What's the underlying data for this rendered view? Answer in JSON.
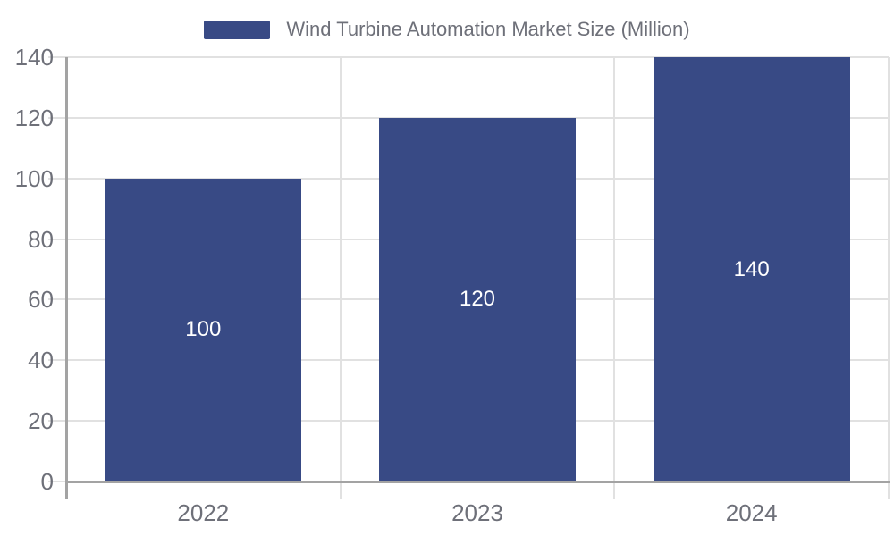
{
  "chart_data": {
    "type": "bar",
    "title": "Wind Turbine Automation Market Size (Million)",
    "categories": [
      "2022",
      "2023",
      "2024"
    ],
    "values": [
      100,
      120,
      140
    ],
    "series": [
      {
        "name": "Wind Turbine Automation Market Size (Million)",
        "values": [
          100,
          120,
          140
        ]
      }
    ],
    "xlabel": "",
    "ylabel": "",
    "ylim": [
      0,
      140
    ],
    "y_ticks": [
      0,
      20,
      40,
      60,
      80,
      100,
      120,
      140
    ],
    "grid": true,
    "legend_position": "top-center",
    "value_labels_position": "inside-center",
    "colors": {
      "bar": "#384A85",
      "value_label_text": "#FFFFFF",
      "axis_text": "#6E7079",
      "grid_line": "#E1E1E1",
      "axis_line": "#A3A3A3",
      "legend_text": "#6E7079",
      "background": "#FFFFFF"
    }
  }
}
